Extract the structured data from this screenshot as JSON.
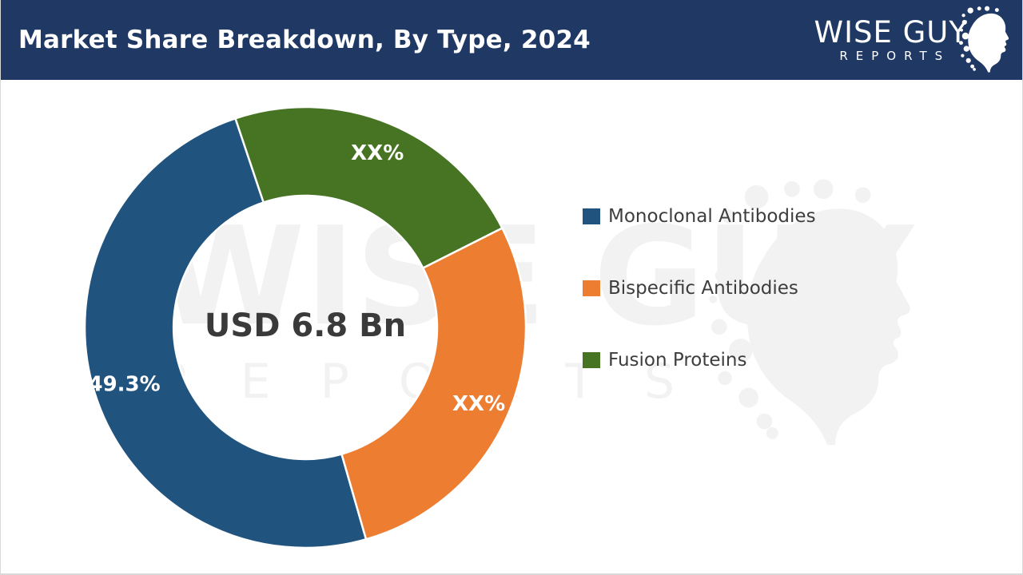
{
  "header": {
    "title": "Market Share Breakdown, By Type, 2024",
    "bg_color": "#1f3864",
    "logo": {
      "line1": "WISE GUY",
      "line2": "REPORTS"
    }
  },
  "watermark": {
    "line1": "WISE GUY",
    "line2": "REPORTS"
  },
  "chart_data": {
    "type": "pie",
    "subtype": "donut",
    "title": "Market Share Breakdown, By Type, 2024",
    "center_label": "USD 6.8 Bn",
    "start_angle_deg": -18.5,
    "legend_position": "right",
    "slices": [
      {
        "label": "Fusion Proteins",
        "display_value": "XX%",
        "share_pct_est": 22.7,
        "color": "#467423"
      },
      {
        "label": "Bispecific Antibodies",
        "display_value": "XX%",
        "share_pct_est": 28.0,
        "color": "#ed7d31"
      },
      {
        "label": "Monoclonal Antibodies",
        "display_value": "49.3%",
        "share_pct_est": 49.3,
        "color": "#20547f"
      }
    ],
    "legend_items": [
      {
        "label": "Monoclonal Antibodies",
        "color": "#20547f"
      },
      {
        "label": "Bispecific Antibodies",
        "color": "#ed7d31"
      },
      {
        "label": "Fusion Proteins",
        "color": "#467423"
      }
    ]
  },
  "colors": {
    "header_bg": "#1f3864",
    "page_border": "#d9d9d9",
    "watermark": "#f2f2f3",
    "center_text": "#3a3a3a",
    "legend_text": "#3d3d3d"
  }
}
